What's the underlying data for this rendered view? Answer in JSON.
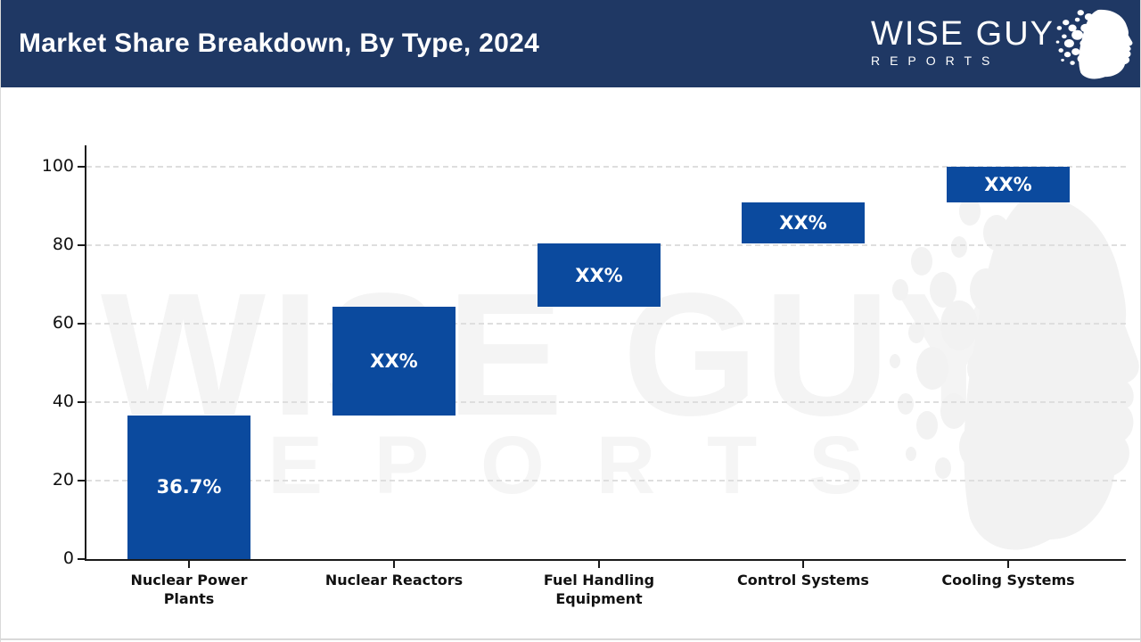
{
  "header": {
    "title": "Market Share Breakdown, By Type, 2024",
    "bg_color": "#1f3864",
    "text_color": "#ffffff",
    "logo": {
      "line1": "WISE GUY",
      "line2": "REPORTS"
    }
  },
  "watermark": {
    "line1": "WISE GUY",
    "line2": "REPORTS"
  },
  "chart_data": {
    "type": "bar",
    "subtype": "waterfall",
    "title": "Market Share Breakdown, By Type, 2024",
    "xlabel": "",
    "ylabel": "",
    "categories": [
      "Nuclear Power Plants",
      "Nuclear Reactors",
      "Fuel Handling Equipment",
      "Control Systems",
      "Cooling Systems"
    ],
    "segments": [
      {
        "category": "Nuclear Power Plants",
        "start": 0,
        "end": 36.7,
        "label": "36.7%"
      },
      {
        "category": "Nuclear Reactors",
        "start": 36.7,
        "end": 64.3,
        "label": "XX%"
      },
      {
        "category": "Fuel Handling Equipment",
        "start": 64.3,
        "end": 80.4,
        "label": "XX%"
      },
      {
        "category": "Control Systems",
        "start": 80.4,
        "end": 90.9,
        "label": "XX%"
      },
      {
        "category": "Cooling Systems",
        "start": 90.9,
        "end": 100,
        "label": "XX%"
      }
    ],
    "y_ticks": [
      0,
      20,
      40,
      60,
      80,
      100
    ],
    "ylim": [
      0,
      105
    ],
    "grid": "horizontal-dashed",
    "legend_position": "none",
    "bar_color": "#0b4a9e",
    "bar_label_color": "#ffffff"
  }
}
